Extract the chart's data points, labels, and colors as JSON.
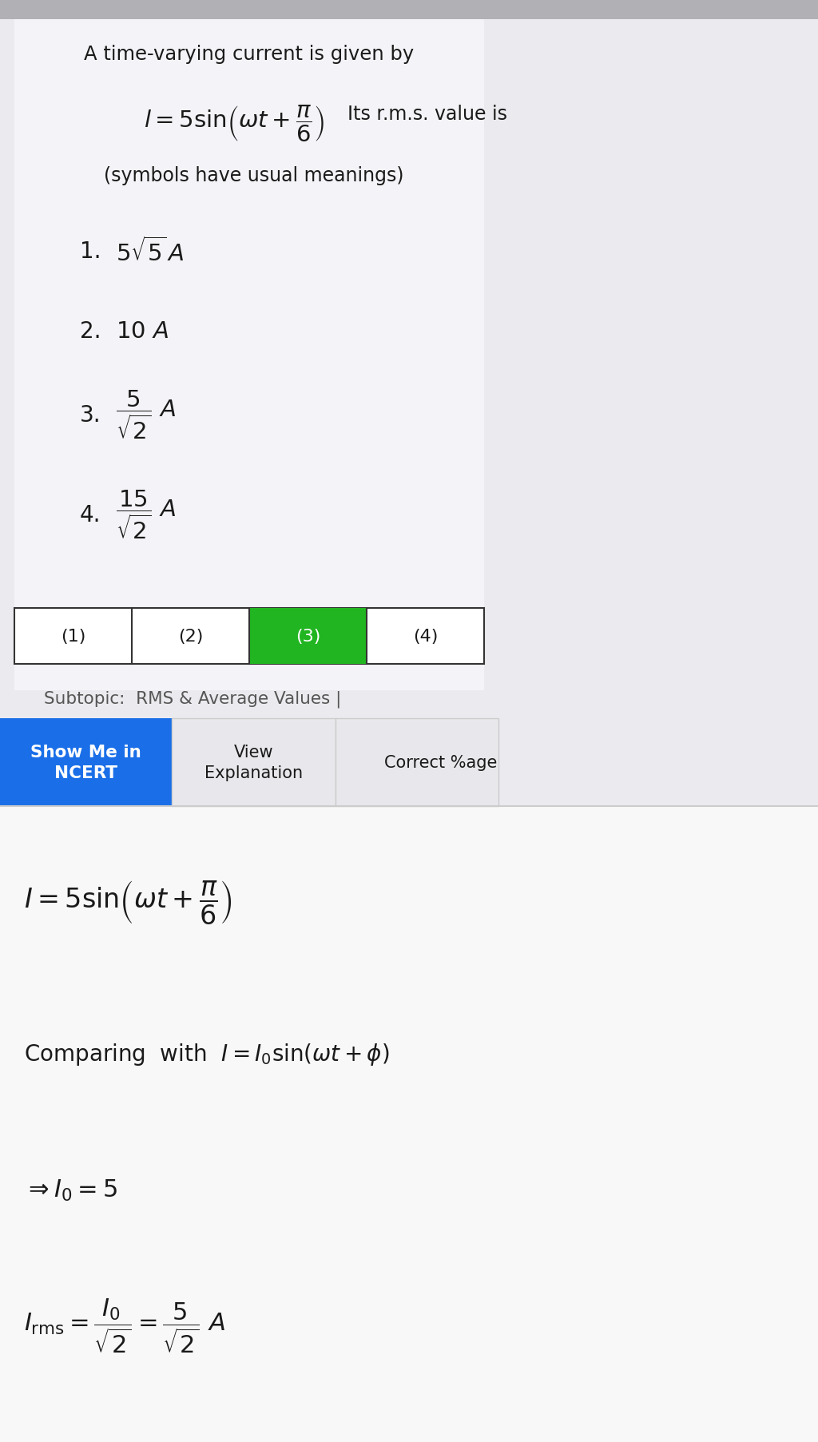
{
  "bg_top": "#d8d8dc",
  "bg_card": "#ebebef",
  "bg_white": "#f4f4f8",
  "bg_explanation": "#f8f8f8",
  "title_text": "A time-varying current is given by",
  "subtitle_note": "(symbols have usual meanings)",
  "answer_buttons": [
    "(1)",
    "(2)",
    "(3)",
    "(4)"
  ],
  "correct_answer_index": 2,
  "correct_color": "#22b522",
  "subtopic_text": "Subtopic:  RMS & Average Values |",
  "subtopic_color": "#555555",
  "show_me_color": "#1a6fe8",
  "explanation_bg": "#f8f8f8",
  "top_dark_bg": "#b0b0b5"
}
